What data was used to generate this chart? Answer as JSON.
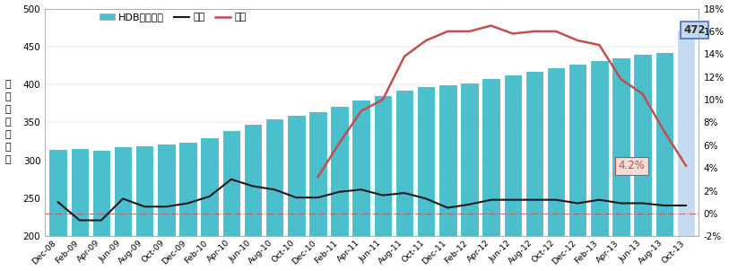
{
  "ylabel_left": "新\n元\n／\n平\n方\n英\n尺",
  "ylim_left": [
    200,
    500
  ],
  "ylim_right": [
    -0.02,
    0.18
  ],
  "categories": [
    "Dec-08",
    "Feb-09",
    "Apr-09",
    "Jun-09",
    "Aug-09",
    "Oct-09",
    "Dec-09",
    "Feb-10",
    "Apr-10",
    "Jun-10",
    "Aug-10",
    "Oct-10",
    "Dec-10",
    "Feb-11",
    "Apr-11",
    "Jun-11",
    "Aug-11",
    "Oct-11",
    "Dec-11",
    "Feb-12",
    "Apr-12",
    "Jun-12",
    "Aug-12",
    "Oct-12",
    "Dec-12",
    "Feb-13",
    "Apr-13",
    "Jun-13",
    "Aug-13",
    "Oct-13"
  ],
  "bar_vals": [
    315,
    316,
    314,
    318,
    320,
    322,
    325,
    330,
    340,
    348,
    355,
    360,
    365,
    372,
    380,
    386,
    393,
    398,
    400,
    403,
    408,
    413,
    418,
    423,
    427,
    432,
    436,
    440,
    443,
    472
  ],
  "mom_vals_pct": [
    0.01,
    -0.006,
    -0.006,
    0.013,
    0.006,
    0.006,
    0.009,
    0.015,
    0.03,
    0.024,
    0.021,
    0.014,
    0.014,
    0.019,
    0.021,
    0.016,
    0.018,
    0.013,
    0.005,
    0.008,
    0.012,
    0.012,
    0.012,
    0.012,
    0.009,
    0.012,
    0.009,
    0.009,
    0.007,
    0.007
  ],
  "yoy_vals_pct": [
    null,
    null,
    null,
    null,
    null,
    null,
    null,
    null,
    null,
    null,
    null,
    null,
    0.032,
    0.062,
    0.09,
    0.1,
    0.138,
    0.152,
    0.16,
    0.16,
    0.165,
    0.158,
    0.16,
    0.16,
    0.152,
    0.148,
    0.118,
    0.105,
    0.072,
    0.042
  ],
  "bar_color": "#4BBFCC",
  "bar_edge_color": "#FFFFFF",
  "mom_color": "#1A1A1A",
  "yoy_color": "#C0504D",
  "last_bar_color": "#C5DCF0",
  "zero_line_color": "#C0504D",
  "annotation_472_facecolor": "#C5D9F1",
  "annotation_472_edgecolor": "#4472C4",
  "annotation_42_facecolor": "#F2DCDB",
  "annotation_42_edgecolor": "#C0504D"
}
